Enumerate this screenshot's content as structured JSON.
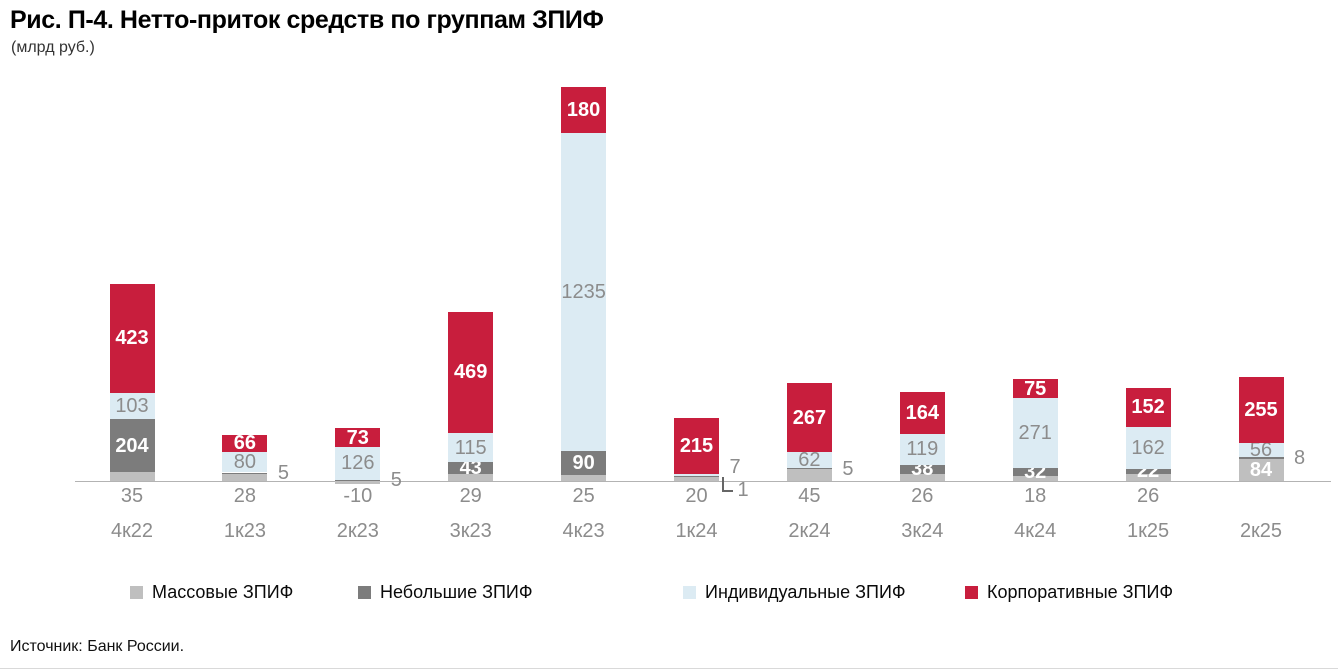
{
  "header": {
    "title": "Рис. П-4. Нетто-приток средств по группам ЗПИФ",
    "subtitle": "(млрд руб.)"
  },
  "footer": {
    "source": "Источник: Банк России."
  },
  "chart_data": {
    "type": "bar",
    "stacked": true,
    "title": "Рис. П-4. Нетто-приток средств по группам ЗПИФ",
    "unit": "млрд руб.",
    "legend_position": "bottom",
    "grid": false,
    "y_axis_hidden": true,
    "ylim": [
      -50,
      1560
    ],
    "categories": [
      "4к22",
      "1к23",
      "2к23",
      "3к23",
      "4к23",
      "1к24",
      "2к24",
      "3к24",
      "4к24",
      "1к25",
      "2к25"
    ],
    "series": [
      {
        "name": "Массовые ЗПИФ",
        "color": "#bfbfbf",
        "label_color": "#ffffff",
        "label_bold": true,
        "values": [
          35,
          28,
          -10,
          29,
          25,
          20,
          45,
          26,
          18,
          26,
          84
        ],
        "label_placement": [
          "axis",
          "axis",
          "axis",
          "axis",
          "axis",
          "axis",
          "axis",
          "axis",
          "axis",
          "axis",
          "inside"
        ]
      },
      {
        "name": "Небольшие ЗПИФ",
        "color": "#7c7c7c",
        "label_color": "#ffffff",
        "label_bold": true,
        "values": [
          204,
          5,
          5,
          43,
          90,
          1,
          5,
          38,
          32,
          22,
          8
        ],
        "label_placement": [
          "inside",
          "right",
          "right",
          "inside",
          "inside",
          "leader",
          "right",
          "inside",
          "inside",
          "inside",
          "right"
        ]
      },
      {
        "name": "Индивидуальные ЗПИФ",
        "color": "#dcebf3",
        "label_color": "#8c8c8c",
        "label_bold": false,
        "values": [
          103,
          80,
          126,
          115,
          1235,
          7,
          62,
          119,
          271,
          162,
          56
        ],
        "label_placement": [
          "inside",
          "inside",
          "inside",
          "inside",
          "inside",
          "right-up",
          "inside",
          "inside",
          "inside",
          "inside",
          "inside"
        ]
      },
      {
        "name": "Корпоративные ЗПИФ",
        "color": "#c81e3d",
        "label_color": "#ffffff",
        "label_bold": true,
        "values": [
          423,
          66,
          73,
          469,
          180,
          215,
          267,
          164,
          75,
          152,
          255
        ],
        "label_placement": [
          "inside",
          "inside",
          "inside",
          "inside",
          "inside",
          "inside",
          "inside",
          "inside",
          "inside",
          "inside",
          "inside"
        ]
      }
    ]
  }
}
